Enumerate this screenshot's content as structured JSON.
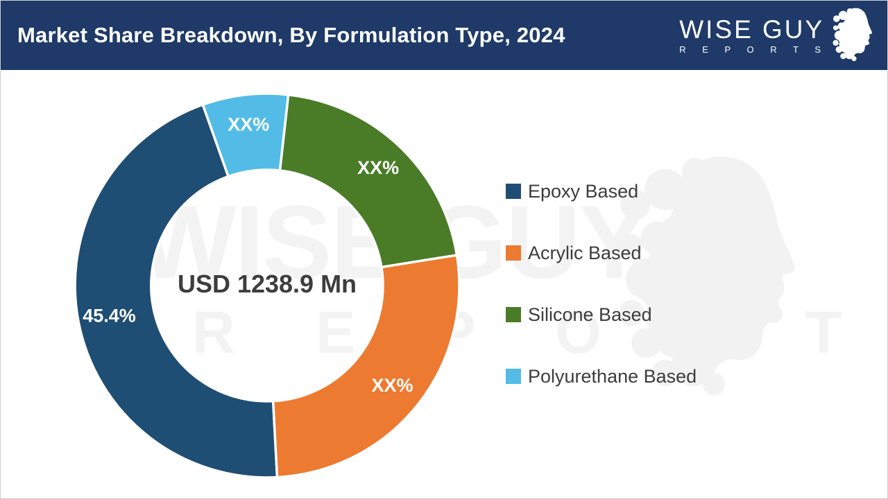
{
  "header": {
    "title": "Market Share Breakdown, By Formulation Type, 2024",
    "bg_color": "#1f3a68",
    "logo": {
      "line1": "WISE GUY",
      "line2": "R E P O R T S"
    }
  },
  "chart_data": {
    "type": "pie",
    "subtype": "donut",
    "title": "Market Share Breakdown, By Formulation Type, 2024",
    "center_label": "USD 1238.9 Mn",
    "legend_position": "right",
    "start_angle_deg": 177.0,
    "draw_order": [
      0,
      3,
      2,
      1
    ],
    "segments": [
      {
        "name": "Epoxy Based",
        "display_label": "45.4%",
        "value_pct": 45.4,
        "color": "#1f4e74"
      },
      {
        "name": "Acrylic Based",
        "display_label": "XX%",
        "value_pct": 26.7,
        "color": "#ed7a31"
      },
      {
        "name": "Silicone Based",
        "display_label": "XX%",
        "value_pct": 20.7,
        "color": "#4a7c28"
      },
      {
        "name": "Polyurethane Based",
        "display_label": "XX%",
        "value_pct": 7.2,
        "color": "#52bce6"
      }
    ],
    "notes": "Only the Epoxy Based slice shows a numeric label (45.4%); other slice labels are masked as XX% in the image. value_pct for masked slices is estimated from arc angles."
  },
  "watermark": {
    "line1": "WISE GUY",
    "line2": "R E P O R T S"
  },
  "colors": {
    "header_bg": "#1f3a68",
    "watermark_gray": "#f2f2f2",
    "legend_text": "#3c3c3c",
    "center_text": "#3d3d3d",
    "separator_white": "#ffffff"
  }
}
